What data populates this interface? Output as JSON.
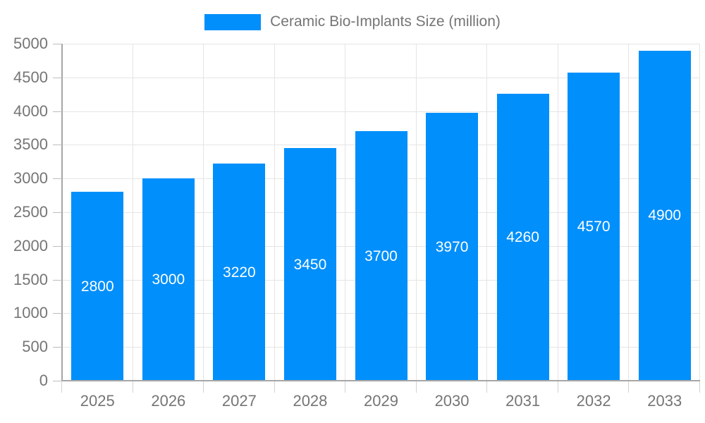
{
  "chart_data": {
    "type": "bar",
    "title": "Ceramic Bio-Implants Size (million)",
    "categories": [
      "2025",
      "2026",
      "2027",
      "2028",
      "2029",
      "2030",
      "2031",
      "2032",
      "2033"
    ],
    "values": [
      2800,
      3000,
      3220,
      3450,
      3700,
      3970,
      4260,
      4570,
      4900
    ],
    "xlabel": "",
    "ylabel": "",
    "ylim": [
      0,
      5000
    ],
    "yticks": [
      0,
      500,
      1000,
      1500,
      2000,
      2500,
      3000,
      3500,
      4000,
      4500,
      5000
    ],
    "grid": "on",
    "legend_position": "top",
    "bar_color": "#008FFB",
    "value_label_color": "#ffffff",
    "axis_text_color": "#757575"
  },
  "legend": {
    "label": "Ceramic Bio-Implants Size (million)"
  }
}
